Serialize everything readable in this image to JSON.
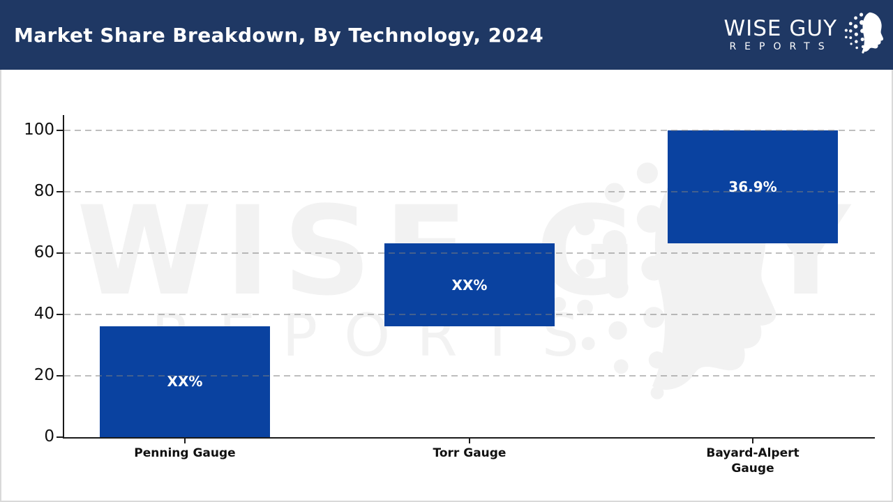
{
  "header": {
    "title": "Market Share Breakdown, By Technology, 2024",
    "bg_color": "#1f3864",
    "logo": {
      "line1": "WISE GUY",
      "line2": "REPORTS"
    }
  },
  "watermark": {
    "line1": "WISE GUY",
    "line2": "REPORTS"
  },
  "colors": {
    "header_bg": "#1f3864",
    "bar": "#0a42a0",
    "bar_label": "#ffffff",
    "watermark": "#f2f2f2",
    "card_border": "#d9d9d9",
    "axis": "#1a1a1a"
  },
  "chart_data": {
    "type": "bar",
    "subtype": "floating-waterfall",
    "title": "Market Share Breakdown, By Technology, 2024",
    "categories": [
      "Penning Gauge",
      "Torr Gauge",
      "Bayard-Alpert Gauge"
    ],
    "categories_display": [
      "Penning Gauge",
      "Torr Gauge",
      "Bayard-Alpert\nGauge"
    ],
    "segments": [
      {
        "category": "Penning Gauge",
        "start": 0,
        "end": 36.2,
        "label": "XX%"
      },
      {
        "category": "Torr Gauge",
        "start": 36.2,
        "end": 63.1,
        "label": "XX%"
      },
      {
        "category": "Bayard-Alpert Gauge",
        "start": 63.1,
        "end": 100,
        "label": "36.9%",
        "value": 36.9
      }
    ],
    "xlabel": "",
    "ylabel": "",
    "yticks": [
      0,
      20,
      40,
      60,
      80,
      100
    ],
    "ylim": [
      0,
      105
    ],
    "grid": "horizontal-dashed",
    "legend": "none",
    "bar_color": "#0a42a0"
  }
}
